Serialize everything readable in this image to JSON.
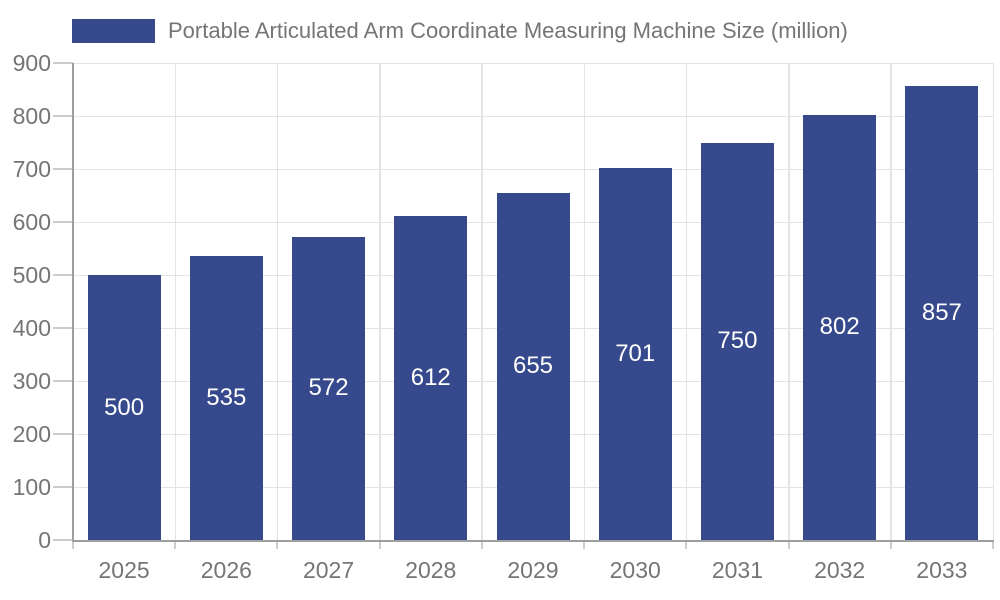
{
  "chart_data": {
    "type": "bar",
    "title": "Portable Articulated Arm Coordinate Measuring Machine Size (million)",
    "categories": [
      "2025",
      "2026",
      "2027",
      "2028",
      "2029",
      "2030",
      "2031",
      "2032",
      "2033"
    ],
    "series": [
      {
        "name": "Portable Articulated Arm Coordinate Measuring Machine Size (million)",
        "values": [
          500,
          535,
          572,
          612,
          655,
          701,
          750,
          802,
          857
        ],
        "color": "#35498C"
      }
    ],
    "xlabel": "",
    "ylabel": "",
    "ylim": [
      0,
      900
    ],
    "ytick_step": 100,
    "grid": true,
    "legend_position": "top-left",
    "value_labels_position": "inside-center",
    "colors": {
      "bar": "#35498C",
      "value_label": "#FFFFFF",
      "axis_text": "#757575",
      "legend_text": "#757575",
      "gridline": "#E4E4E4",
      "axis_line": "#9E9E9E",
      "tick_mark": "#CCCCCC",
      "background": "#FFFFFF"
    }
  }
}
